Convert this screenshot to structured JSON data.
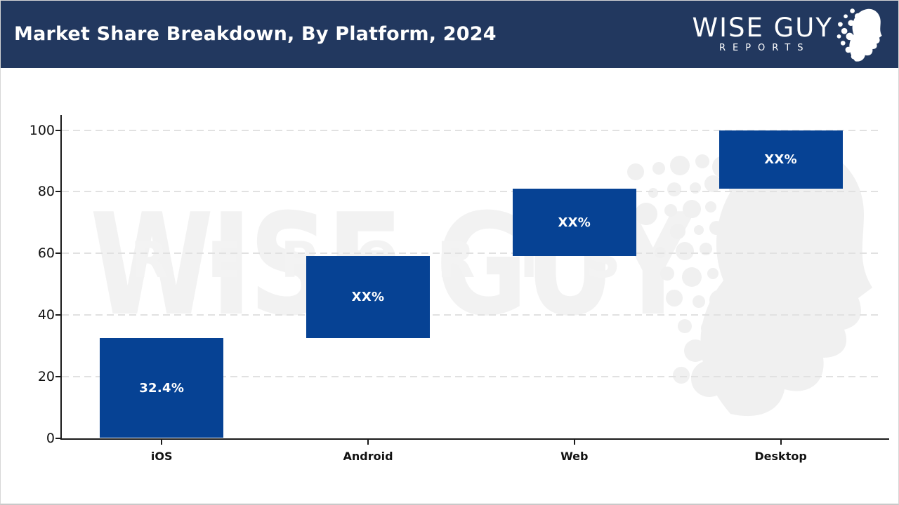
{
  "header": {
    "title": "Market Share Breakdown, By Platform, 2024",
    "logo": {
      "line1": "WISE GUY",
      "line2": "REPORTS"
    }
  },
  "watermark": {
    "line1": "WISE GUY",
    "line2": "REPORTS"
  },
  "colors": {
    "header_bg": "#22385F",
    "bar": "#064294",
    "bar_label": "#ffffff",
    "grid": "#E1E1E1",
    "axis": "#1A1A1A",
    "watermark": "#F1F1F1"
  },
  "chart_data": {
    "type": "bar",
    "subtype": "waterfall",
    "title": "Market Share Breakdown, By Platform, 2024",
    "categories": [
      "iOS",
      "Android",
      "Web",
      "Desktop"
    ],
    "series": [
      {
        "name": "Market share (%)",
        "segments": [
          {
            "category": "iOS",
            "start": 0,
            "end": 32.4,
            "value": 32.4,
            "label": "32.4%"
          },
          {
            "category": "Android",
            "start": 32.4,
            "end": 59.0,
            "value": 26.6,
            "label": "XX%"
          },
          {
            "category": "Web",
            "start": 59.0,
            "end": 81.0,
            "value": 22.0,
            "label": "XX%"
          },
          {
            "category": "Desktop",
            "start": 81.0,
            "end": 100,
            "value": 19.0,
            "label": "XX%"
          }
        ]
      }
    ],
    "xlabel": "",
    "ylabel": "",
    "ylim": [
      0,
      105
    ],
    "yticks": [
      0,
      20,
      40,
      60,
      80,
      100
    ],
    "grid": "horizontal-dashed",
    "legend": "none"
  }
}
